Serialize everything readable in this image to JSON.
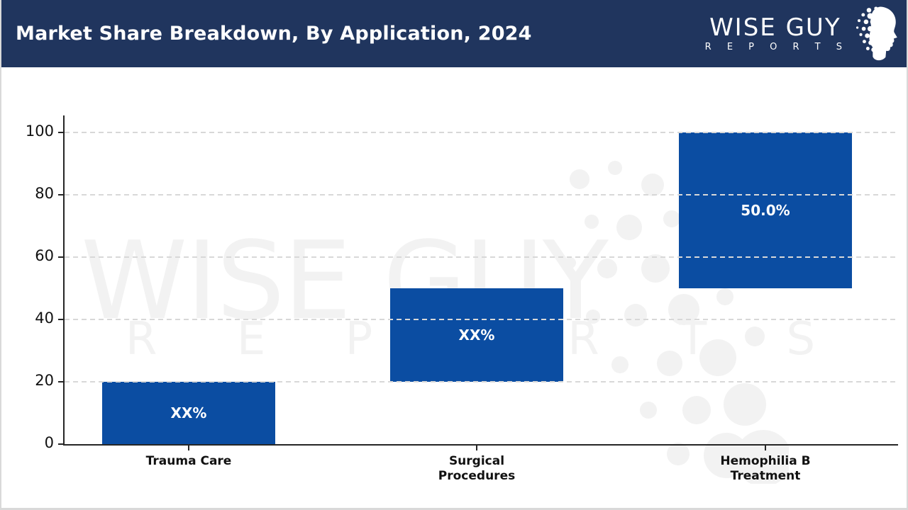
{
  "header": {
    "title": "Market Share Breakdown, By Application, 2024",
    "logo": {
      "line1": "WISE GUY",
      "line2": "R E P O R T S"
    }
  },
  "watermark": {
    "line1": "WISE GUY",
    "line2": "R E P O R T S"
  },
  "colors": {
    "header_bg": "#20355e",
    "bar_blue": "#0b4da2",
    "bar_label_text": "#ffffff",
    "watermark_gray": "#f2f2f2",
    "gridline_gray": "#d8d8d8",
    "axis_dark": "#262626",
    "tick_text": "#111111"
  },
  "chart_data": {
    "type": "bar",
    "subtype": "waterfall",
    "title": "Market Share Breakdown, By Application, 2024",
    "categories": [
      "Trauma Care",
      "Surgical Procedures",
      "Hemophilia B Treatment"
    ],
    "categories_display": [
      [
        "Trauma Care"
      ],
      [
        "Surgical",
        "Procedures"
      ],
      [
        "Hemophilia B",
        "Treatment"
      ]
    ],
    "segments": [
      {
        "category": "Trauma Care",
        "start": 0,
        "end": 20,
        "label": "XX%"
      },
      {
        "category": "Surgical Procedures",
        "start": 20,
        "end": 50,
        "label": "XX%"
      },
      {
        "category": "Hemophilia B Treatment",
        "start": 50,
        "end": 100,
        "label": "50.0%"
      }
    ],
    "ylabel": "",
    "xlabel": "",
    "ylim": [
      0,
      100
    ],
    "yticks": [
      0,
      20,
      40,
      60,
      80,
      100
    ],
    "grid": "horizontal-dashed",
    "grid_over_bars": true,
    "legend": "none",
    "bar_color": "#0b4da2"
  }
}
